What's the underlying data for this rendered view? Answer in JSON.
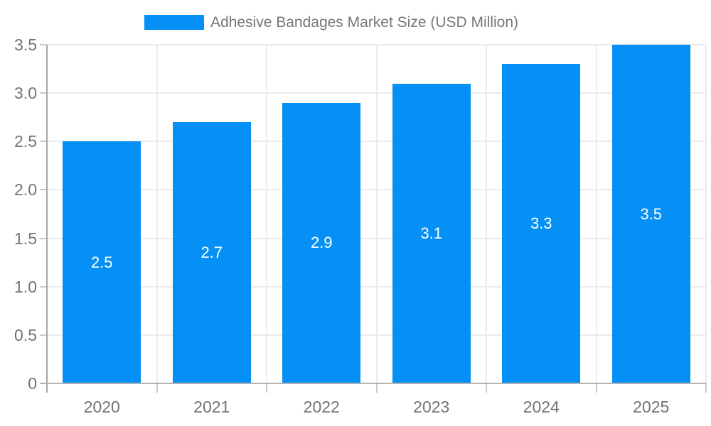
{
  "legend": {
    "label": "Adhesive Bandages Market Size (USD Million)"
  },
  "chart_data": {
    "type": "bar",
    "title": "Adhesive Bandages Market Size (USD Million)",
    "series_name": "Adhesive Bandages Market Size (USD Million)",
    "categories": [
      "2020",
      "2021",
      "2022",
      "2023",
      "2024",
      "2025"
    ],
    "values": [
      2.5,
      2.7,
      2.9,
      3.1,
      3.3,
      3.5
    ],
    "value_labels": [
      "2.5",
      "2.7",
      "2.9",
      "3.1",
      "3.3",
      "3.5"
    ],
    "xlabel": "",
    "ylabel": "",
    "ylim": [
      0,
      3.5
    ],
    "ytick_step": 0.5,
    "ytick_labels": [
      "0",
      "0.5",
      "1.0",
      "1.5",
      "2.0",
      "2.5",
      "3.0",
      "3.5"
    ],
    "grid": true,
    "legend_position": "top",
    "colors": {
      "bar": "#0590f5",
      "value_label_text": "#ffffff",
      "axis_text": "#737373",
      "legend_text": "#757779",
      "gridline": "#ebebeb",
      "axis_line": "#a6a6a6",
      "baseline": "#b3b3b3",
      "tick": "#c9c9c9",
      "background": "#ffffff"
    }
  }
}
